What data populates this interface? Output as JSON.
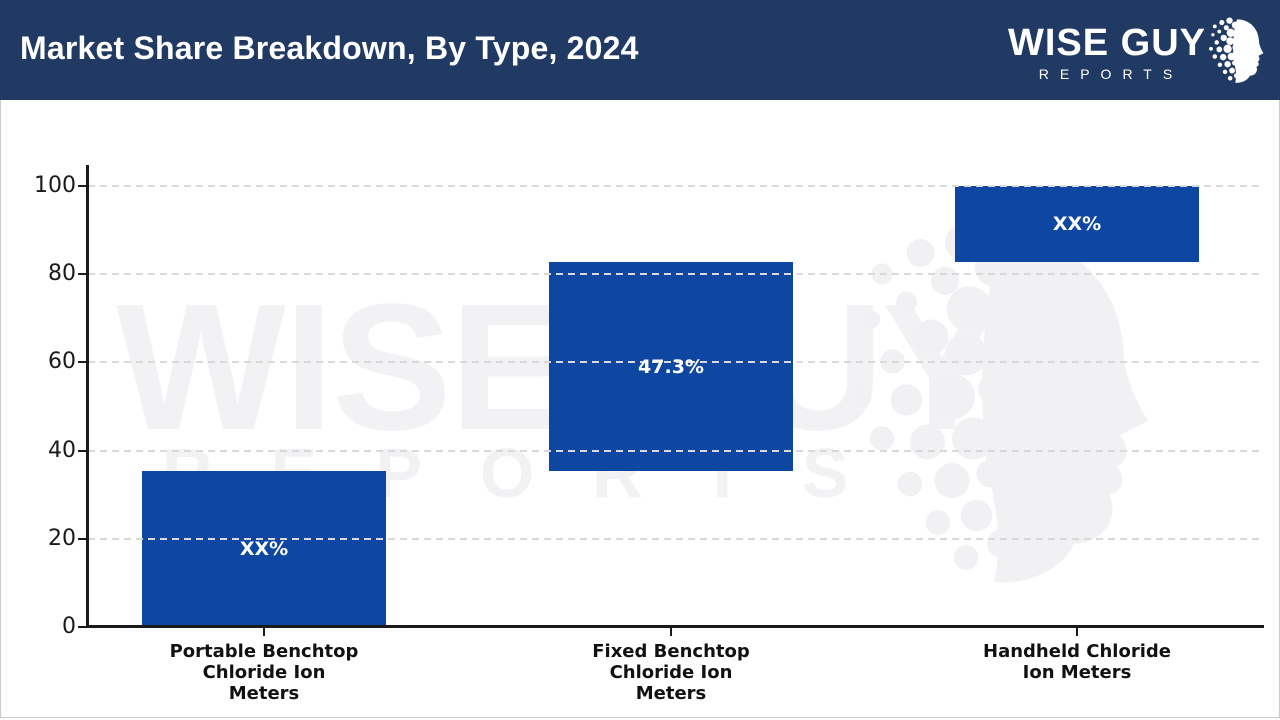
{
  "header": {
    "title": "Market Share Breakdown, By Type, 2024",
    "bg_color": "#213a63",
    "logo": {
      "wordmark": "WISE GUY",
      "subtext": "REPORTS"
    }
  },
  "watermark": {
    "wordmark": "WISE GUY",
    "subtext": "REPORTS"
  },
  "chart_data": {
    "type": "bar",
    "variant": "stacked-waterfall",
    "title": "Market Share Breakdown, By Type, 2024",
    "categories": [
      "Portable Benchtop Chloride Ion Meters",
      "Fixed Benchtop Chloride Ion Meters",
      "Handheld Chloride Ion Meters"
    ],
    "category_lines": [
      [
        "Portable Benchtop",
        "Chloride Ion",
        "Meters"
      ],
      [
        "Fixed Benchtop",
        "Chloride Ion",
        "Meters"
      ],
      [
        "Handheld Chloride",
        "Ion Meters"
      ]
    ],
    "bars": [
      {
        "start": 0,
        "end": 35.4,
        "value_label": "XX%"
      },
      {
        "start": 35.4,
        "end": 82.7,
        "value_label": "47.3%"
      },
      {
        "start": 82.7,
        "end": 100,
        "value_label": "XX%"
      }
    ],
    "ylim": [
      0,
      100
    ],
    "yticks": [
      0,
      20,
      40,
      60,
      80,
      100
    ],
    "xlabel": "",
    "ylabel": "",
    "grid": {
      "axis": "y",
      "style": "dashed",
      "color": "#d9d9d9",
      "over_bars": true
    },
    "legend": "none",
    "bar_color": "#0d47a1",
    "value_label_color": "#ffffff",
    "axis_color": "#1a1a1a"
  }
}
